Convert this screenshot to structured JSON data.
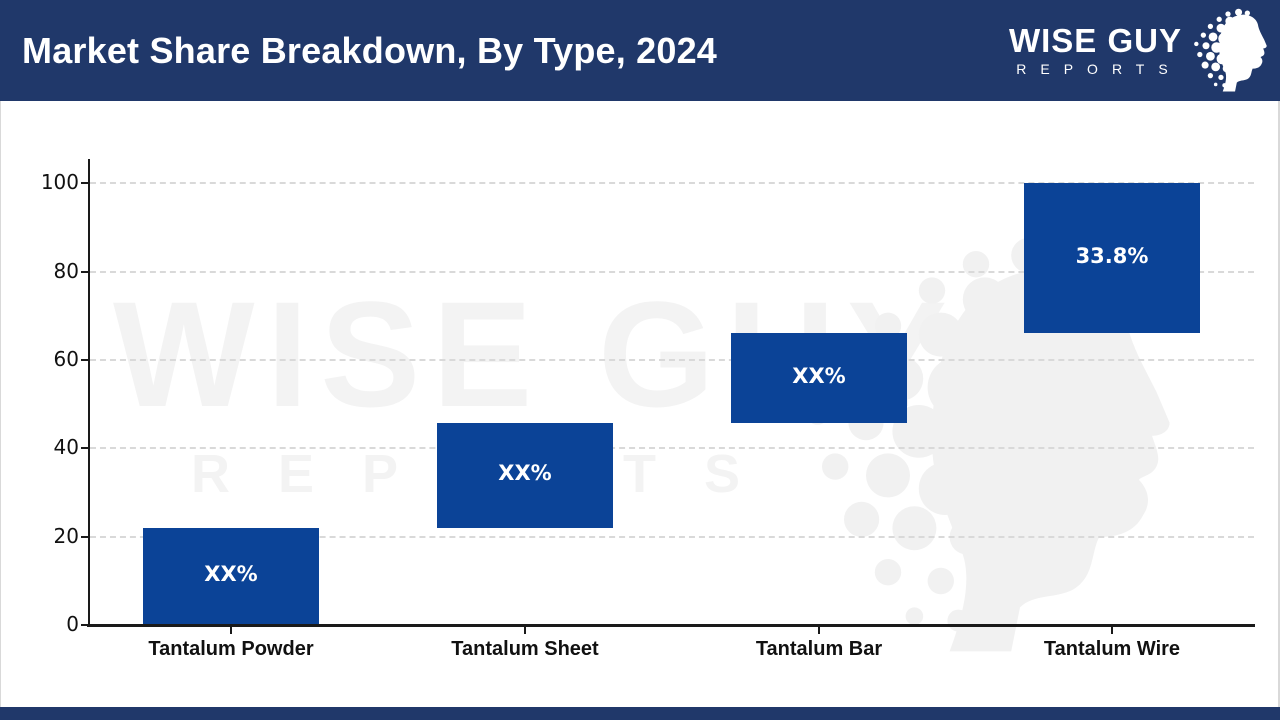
{
  "header": {
    "title": "Market Share Breakdown, By Type, 2024",
    "logo": {
      "line1": "WISE GUY",
      "line2": "REPORTS"
    }
  },
  "watermark": {
    "line1": "WISE GUY",
    "line2": "REPORTS"
  },
  "colors": {
    "header_footer_navy": "#20386a",
    "bar_blue": "#0b4397",
    "bar_label_white": "#ffffff",
    "gridline_gray": "#d9d9d9",
    "axis_black": "#1a1a1a",
    "watermark_gray": "#f3f3f3"
  },
  "chart_data": {
    "type": "bar",
    "variant": "floating-waterfall",
    "title": "Market Share Breakdown, By Type, 2024",
    "categories": [
      "Tantalum Powder",
      "Tantalum Sheet",
      "Tantalum Bar",
      "Tantalum Wire"
    ],
    "bars": [
      {
        "category": "Tantalum Powder",
        "start": 0,
        "end": 22,
        "label": "XX%"
      },
      {
        "category": "Tantalum Sheet",
        "start": 22,
        "end": 45.7,
        "label": "XX%"
      },
      {
        "category": "Tantalum Bar",
        "start": 45.7,
        "end": 66.2,
        "label": "XX%"
      },
      {
        "category": "Tantalum Wire",
        "start": 66.2,
        "end": 100,
        "label": "33.8%"
      }
    ],
    "xlabel": "",
    "ylabel": "",
    "yticks": [
      0,
      20,
      40,
      60,
      80,
      100
    ],
    "ylim": [
      0,
      105
    ],
    "grid": "horizontal-dashed",
    "legend": "none",
    "bar_color": "#0b4397",
    "bar_label_color": "#ffffff"
  }
}
